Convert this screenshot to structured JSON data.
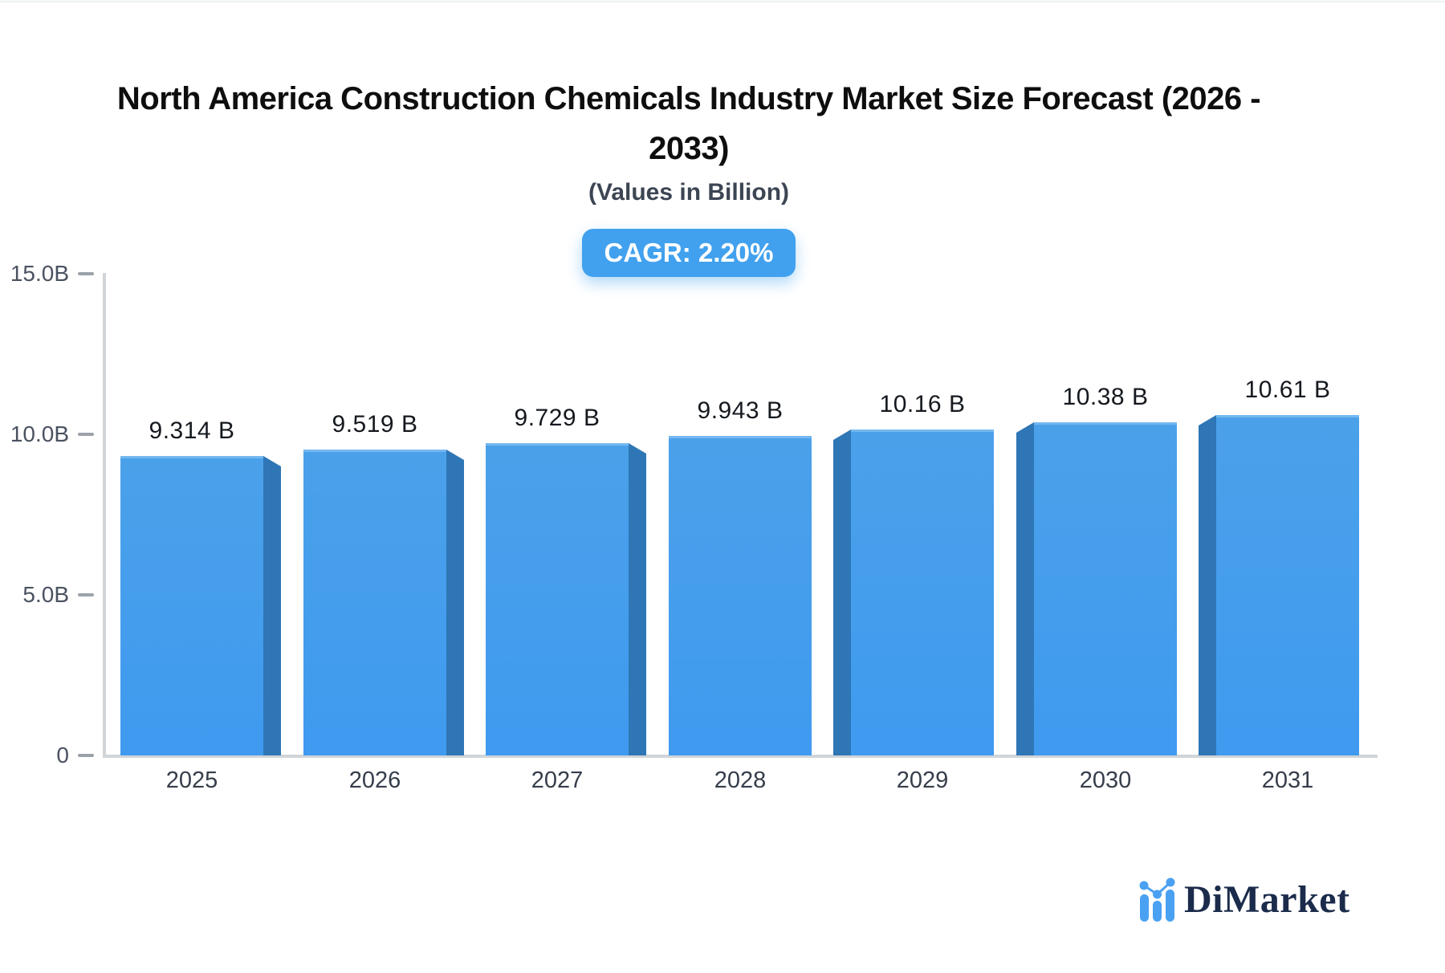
{
  "header": {
    "title_line1": "North America Construction Chemicals Industry Market Size Forecast (2026 -",
    "title_line2": "2033)",
    "subtitle": "(Values in Billion)",
    "cagr_badge": "CAGR: 2.20%"
  },
  "chart_data": {
    "type": "bar",
    "title": "North America Construction Chemicals Industry Market Size Forecast (2026 - 2033)",
    "subtitle": "(Values in Billion)",
    "cagr": "2.20%",
    "categories": [
      "2025",
      "2026",
      "2027",
      "2028",
      "2029",
      "2030",
      "2031"
    ],
    "values": [
      9.314,
      9.519,
      9.729,
      9.943,
      10.16,
      10.38,
      10.61
    ],
    "value_labels": [
      "9.314 B",
      "9.519 B",
      "9.729 B",
      "9.943 B",
      "10.16 B",
      "10.38 B",
      "10.61 B"
    ],
    "ylim": [
      0,
      15
    ],
    "yticks": [
      {
        "value": 0,
        "label": "0"
      },
      {
        "value": 5,
        "label": "5.0B"
      },
      {
        "value": 10,
        "label": "10.0B"
      },
      {
        "value": 15,
        "label": "15.0B"
      }
    ],
    "grid": false,
    "legend": false,
    "bar_style": {
      "face_top": "#4ba1e9",
      "face_bottom": "#3f9af0",
      "side": "#2e76b5",
      "edge_highlight": "#74b8f0"
    },
    "axis_color": "#d1d5d9"
  },
  "brand": {
    "name": "DiMarket",
    "icon": "bar-chart-logo-icon",
    "icon_color": "#4aa1f2",
    "text_color": "#1b2b4b"
  }
}
